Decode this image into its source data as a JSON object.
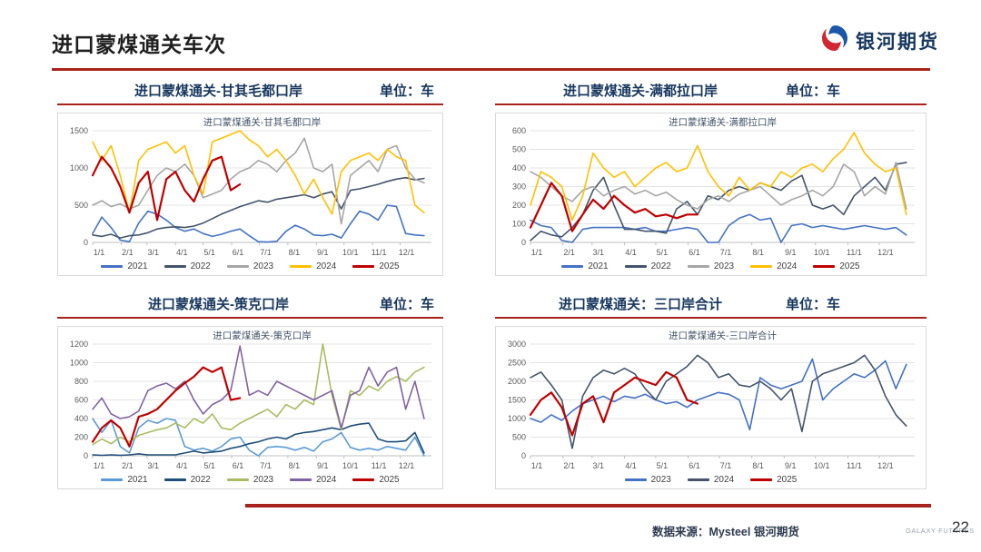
{
  "page": {
    "title": "进口蒙煤通关车次",
    "logo_text": "银河期货",
    "footer": {
      "source": "数据来源：Mysteel 银河期货",
      "brand": "GALAXY FUTURES",
      "page_number": "22"
    }
  },
  "colors": {
    "rule_red": "#A8231B",
    "header_navy": "#17375E",
    "axis_text": "#595959",
    "grid": "#E3E3E3"
  },
  "chart_data": [
    {
      "type": "line",
      "header": "进口蒙煤通关-甘其毛都口岸",
      "unit_label": "单位：车",
      "title": "进口蒙煤通关-甘其毛都口岸",
      "xlabel": "",
      "ylabel": "",
      "ylim": [
        0,
        1500
      ],
      "yticks": [
        0,
        500,
        1000,
        1500
      ],
      "x_max": 368,
      "x_tick_days": [
        0,
        31,
        59,
        90,
        120,
        151,
        181,
        212,
        243,
        273,
        304,
        334
      ],
      "x_tick_labels": [
        "1/1",
        "2/1",
        "3/1",
        "4/1",
        "5/1",
        "6/1",
        "7/1",
        "8/1",
        "9/1",
        "10/1",
        "11/1",
        "12/1"
      ],
      "grid": true,
      "legend_position": "bottom",
      "series": [
        {
          "name": "2021",
          "color": "#4472C4",
          "x_start": 0,
          "x_step": 10,
          "values": [
            120,
            340,
            200,
            30,
            10,
            260,
            420,
            380,
            300,
            200,
            150,
            180,
            120,
            80,
            110,
            150,
            180,
            90,
            10,
            5,
            15,
            150,
            230,
            180,
            100,
            90,
            110,
            60,
            250,
            420,
            380,
            300,
            500,
            480,
            120,
            100,
            90
          ]
        },
        {
          "name": "2022",
          "color": "#44546A",
          "x_start": 0,
          "x_step": 10,
          "values": [
            100,
            80,
            110,
            60,
            90,
            100,
            130,
            180,
            200,
            210,
            200,
            220,
            260,
            320,
            380,
            430,
            480,
            520,
            560,
            540,
            580,
            600,
            620,
            640,
            600,
            650,
            680,
            450,
            700,
            720,
            750,
            780,
            820,
            850,
            870,
            840,
            860
          ]
        },
        {
          "name": "2023",
          "color": "#A6A6A6",
          "x_start": 0,
          "x_step": 10,
          "values": [
            500,
            560,
            480,
            520,
            450,
            500,
            700,
            900,
            1000,
            950,
            1050,
            900,
            600,
            650,
            700,
            850,
            950,
            1000,
            1100,
            1050,
            950,
            1100,
            1200,
            1400,
            1000,
            950,
            1050,
            250,
            900,
            1000,
            1100,
            950,
            1250,
            1300,
            1000,
            850,
            800
          ]
        },
        {
          "name": "2024",
          "color": "#FFC000",
          "x_start": 0,
          "x_step": 10,
          "values": [
            1350,
            1100,
            1300,
            900,
            400,
            1100,
            1250,
            1300,
            1350,
            1200,
            1300,
            900,
            650,
            1350,
            1400,
            1450,
            1500,
            1380,
            1300,
            1150,
            1250,
            1100,
            900,
            650,
            850,
            600,
            380,
            950,
            1100,
            1150,
            1200,
            1100,
            1250,
            1150,
            1100,
            500,
            400
          ]
        },
        {
          "name": "2025",
          "color": "#C00000",
          "x_start": 0,
          "x_step": 10,
          "values": [
            900,
            1150,
            1000,
            750,
            400,
            800,
            950,
            300,
            850,
            950,
            700,
            550,
            850,
            1100,
            1150,
            700,
            780
          ]
        }
      ]
    },
    {
      "type": "line",
      "header": "进口蒙煤通关-满都拉口岸",
      "unit_label": "单位：车",
      "title": "进口蒙煤通关-满都拉口岸",
      "xlabel": "",
      "ylabel": "",
      "ylim": [
        0,
        600
      ],
      "yticks": [
        0,
        100,
        200,
        300,
        400,
        500,
        600
      ],
      "x_max": 368,
      "x_tick_days": [
        0,
        31,
        59,
        90,
        120,
        151,
        181,
        212,
        243,
        273,
        304,
        334
      ],
      "x_tick_labels": [
        "1/1",
        "2/1",
        "3/1",
        "4/1",
        "5/1",
        "6/1",
        "7/1",
        "8/1",
        "9/1",
        "10/1",
        "11/1",
        "12/1"
      ],
      "grid": true,
      "legend_position": "bottom",
      "series": [
        {
          "name": "2021",
          "color": "#4472C4",
          "x_start": 0,
          "x_step": 10,
          "values": [
            120,
            90,
            80,
            10,
            0,
            70,
            80,
            80,
            80,
            80,
            70,
            80,
            60,
            60,
            70,
            80,
            70,
            0,
            0,
            90,
            130,
            150,
            120,
            130,
            0,
            90,
            100,
            80,
            90,
            80,
            70,
            80,
            90,
            80,
            70,
            80,
            40
          ]
        },
        {
          "name": "2022",
          "color": "#44546A",
          "x_start": 0,
          "x_step": 10,
          "values": [
            10,
            60,
            40,
            30,
            80,
            150,
            280,
            350,
            200,
            70,
            70,
            60,
            60,
            50,
            180,
            220,
            150,
            250,
            230,
            280,
            300,
            280,
            320,
            300,
            280,
            330,
            360,
            200,
            180,
            200,
            150,
            250,
            300,
            350,
            280,
            420,
            430
          ]
        },
        {
          "name": "2023",
          "color": "#A6A6A6",
          "x_start": 0,
          "x_step": 10,
          "values": [
            380,
            350,
            300,
            250,
            220,
            280,
            300,
            250,
            280,
            300,
            260,
            280,
            250,
            270,
            230,
            200,
            180,
            230,
            250,
            220,
            260,
            280,
            300,
            250,
            200,
            230,
            250,
            280,
            250,
            300,
            420,
            380,
            250,
            300,
            260,
            430,
            180
          ]
        },
        {
          "name": "2024",
          "color": "#FFC000",
          "x_start": 0,
          "x_step": 10,
          "values": [
            200,
            380,
            350,
            300,
            120,
            250,
            480,
            400,
            350,
            380,
            300,
            350,
            400,
            430,
            380,
            400,
            520,
            380,
            300,
            250,
            350,
            280,
            320,
            300,
            380,
            350,
            400,
            420,
            380,
            450,
            500,
            590,
            480,
            420,
            380,
            400,
            150
          ]
        },
        {
          "name": "2025",
          "color": "#C00000",
          "x_start": 0,
          "x_step": 10,
          "values": [
            80,
            200,
            320,
            250,
            60,
            150,
            230,
            180,
            250,
            200,
            160,
            180,
            140,
            150,
            130,
            150,
            150
          ]
        }
      ]
    },
    {
      "type": "line",
      "header": "进口蒙煤通关-策克口岸",
      "unit_label": "单位：车",
      "title": "进口蒙煤通关-策克口岸",
      "xlabel": "",
      "ylabel": "",
      "ylim": [
        0,
        1200
      ],
      "yticks": [
        0,
        200,
        400,
        600,
        800,
        1000,
        1200
      ],
      "x_max": 368,
      "x_tick_days": [
        0,
        31,
        59,
        90,
        120,
        151,
        181,
        212,
        243,
        273,
        304,
        334
      ],
      "x_tick_labels": [
        "1/1",
        "2/1",
        "3/1",
        "4/1",
        "5/1",
        "6/1",
        "7/1",
        "8/1",
        "9/1",
        "10/1",
        "11/1",
        "12/1"
      ],
      "grid": true,
      "legend_position": "bottom",
      "series": [
        {
          "name": "2021",
          "color": "#5B9BD5",
          "x_start": 0,
          "x_step": 10,
          "values": [
            400,
            250,
            380,
            100,
            30,
            300,
            380,
            350,
            400,
            380,
            100,
            60,
            80,
            50,
            100,
            180,
            200,
            60,
            0,
            90,
            100,
            90,
            60,
            90,
            50,
            150,
            180,
            250,
            90,
            60,
            80,
            60,
            100,
            80,
            60,
            200,
            0
          ]
        },
        {
          "name": "2022",
          "color": "#1F4E79",
          "x_start": 0,
          "x_step": 10,
          "values": [
            10,
            5,
            10,
            5,
            10,
            20,
            10,
            10,
            10,
            10,
            30,
            50,
            30,
            40,
            50,
            80,
            100,
            130,
            150,
            180,
            200,
            180,
            230,
            250,
            260,
            280,
            300,
            280,
            320,
            340,
            350,
            180,
            150,
            150,
            160,
            250,
            30
          ]
        },
        {
          "name": "2023",
          "color": "#A9BC63",
          "x_start": 0,
          "x_step": 10,
          "values": [
            120,
            180,
            130,
            200,
            150,
            220,
            250,
            280,
            300,
            350,
            300,
            400,
            350,
            450,
            300,
            280,
            350,
            400,
            450,
            500,
            420,
            550,
            500,
            600,
            550,
            1200,
            650,
            280,
            700,
            650,
            750,
            700,
            800,
            850,
            800,
            900,
            950
          ]
        },
        {
          "name": "2024",
          "color": "#8064A2",
          "x_start": 0,
          "x_step": 10,
          "values": [
            500,
            620,
            450,
            400,
            420,
            480,
            700,
            750,
            780,
            720,
            800,
            600,
            450,
            550,
            600,
            700,
            1180,
            650,
            700,
            650,
            800,
            750,
            700,
            650,
            600,
            650,
            700,
            300,
            650,
            700,
            950,
            750,
            900,
            950,
            500,
            800,
            400
          ]
        },
        {
          "name": "2025",
          "color": "#C00000",
          "x_start": 0,
          "x_step": 10,
          "values": [
            150,
            300,
            380,
            300,
            100,
            420,
            450,
            500,
            600,
            700,
            780,
            850,
            950,
            900,
            950,
            600,
            620
          ]
        }
      ]
    },
    {
      "type": "line",
      "header": "进口蒙煤通关：三口岸合计",
      "unit_label": "单位：车",
      "title": "进口蒙煤通关-三口岸合计",
      "xlabel": "",
      "ylabel": "",
      "ylim": [
        0,
        3000
      ],
      "yticks": [
        0,
        500,
        1000,
        1500,
        2000,
        2500,
        3000
      ],
      "x_max": 368,
      "x_tick_days": [
        0,
        31,
        59,
        90,
        120,
        151,
        181,
        212,
        243,
        273,
        304,
        334
      ],
      "x_tick_labels": [
        "1/1",
        "2/1",
        "3/1",
        "4/1",
        "5/1",
        "6/1",
        "7/1",
        "8/1",
        "9/1",
        "10/1",
        "11/1",
        "12/1"
      ],
      "grid": true,
      "legend_position": "bottom",
      "series": [
        {
          "name": "2023",
          "color": "#4472C4",
          "x_start": 0,
          "x_step": 10,
          "values": [
            1000,
            900,
            1100,
            950,
            1200,
            1400,
            1500,
            1600,
            1450,
            1600,
            1550,
            1650,
            1500,
            1400,
            1450,
            1300,
            1500,
            1600,
            1700,
            1650,
            1500,
            700,
            2100,
            1900,
            1800,
            1900,
            2000,
            2600,
            1500,
            1800,
            2000,
            2200,
            2100,
            2300,
            2550,
            1800,
            2450
          ]
        },
        {
          "name": "2024",
          "color": "#44546A",
          "x_start": 0,
          "x_step": 10,
          "values": [
            2100,
            2250,
            1900,
            1500,
            200,
            1600,
            2100,
            2300,
            2200,
            2350,
            2200,
            1800,
            1500,
            2000,
            2200,
            2400,
            2700,
            2500,
            2100,
            2200,
            1900,
            1850,
            2000,
            1800,
            1500,
            1800,
            650,
            2000,
            2200,
            2300,
            2400,
            2500,
            2700,
            2300,
            1600,
            1100,
            800
          ]
        },
        {
          "name": "2025",
          "color": "#C00000",
          "x_start": 0,
          "x_step": 10,
          "values": [
            1100,
            1500,
            1700,
            1300,
            550,
            1400,
            1600,
            900,
            1700,
            1900,
            2100,
            2000,
            1900,
            2250,
            2100,
            1500,
            1400
          ]
        }
      ]
    }
  ]
}
